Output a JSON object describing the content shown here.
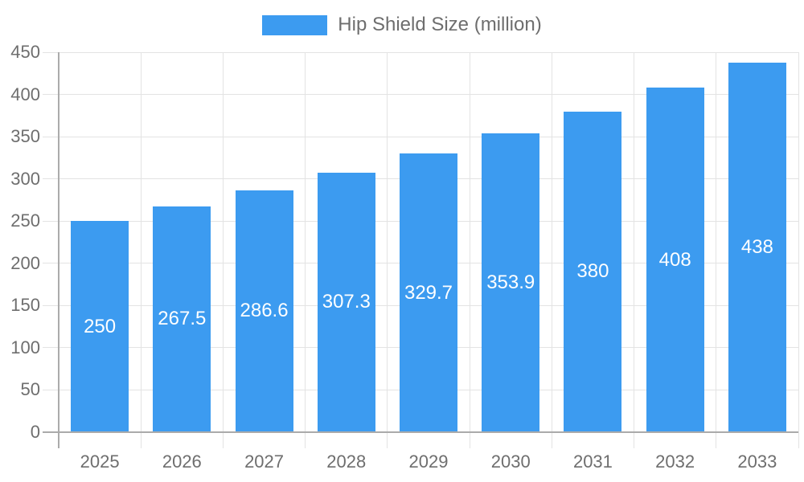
{
  "legend": {
    "label": "Hip Shield Size (million)"
  },
  "colors": {
    "bar": "#3C9BF0",
    "grid": "#E3E3E3",
    "axis": "#ABABAB",
    "axis_text": "#6E6E6E",
    "legend_text": "#6E6E6E",
    "bar_value_text": "#FFFFFF",
    "background": "#FFFFFF"
  },
  "chart_data": {
    "type": "bar",
    "title": "",
    "series_label": "Hip Shield Size (million)",
    "categories": [
      "2025",
      "2026",
      "2027",
      "2028",
      "2029",
      "2030",
      "2031",
      "2032",
      "2033"
    ],
    "values": [
      250,
      267.5,
      286.6,
      307.3,
      329.7,
      353.9,
      380,
      408,
      438
    ],
    "xlabel": "",
    "ylabel": "",
    "ylim": [
      0,
      450
    ],
    "yticks": [
      0,
      50,
      100,
      150,
      200,
      250,
      300,
      350,
      400,
      450
    ],
    "grid": true,
    "legend_position": "top-center",
    "value_labels": "inside-center"
  }
}
